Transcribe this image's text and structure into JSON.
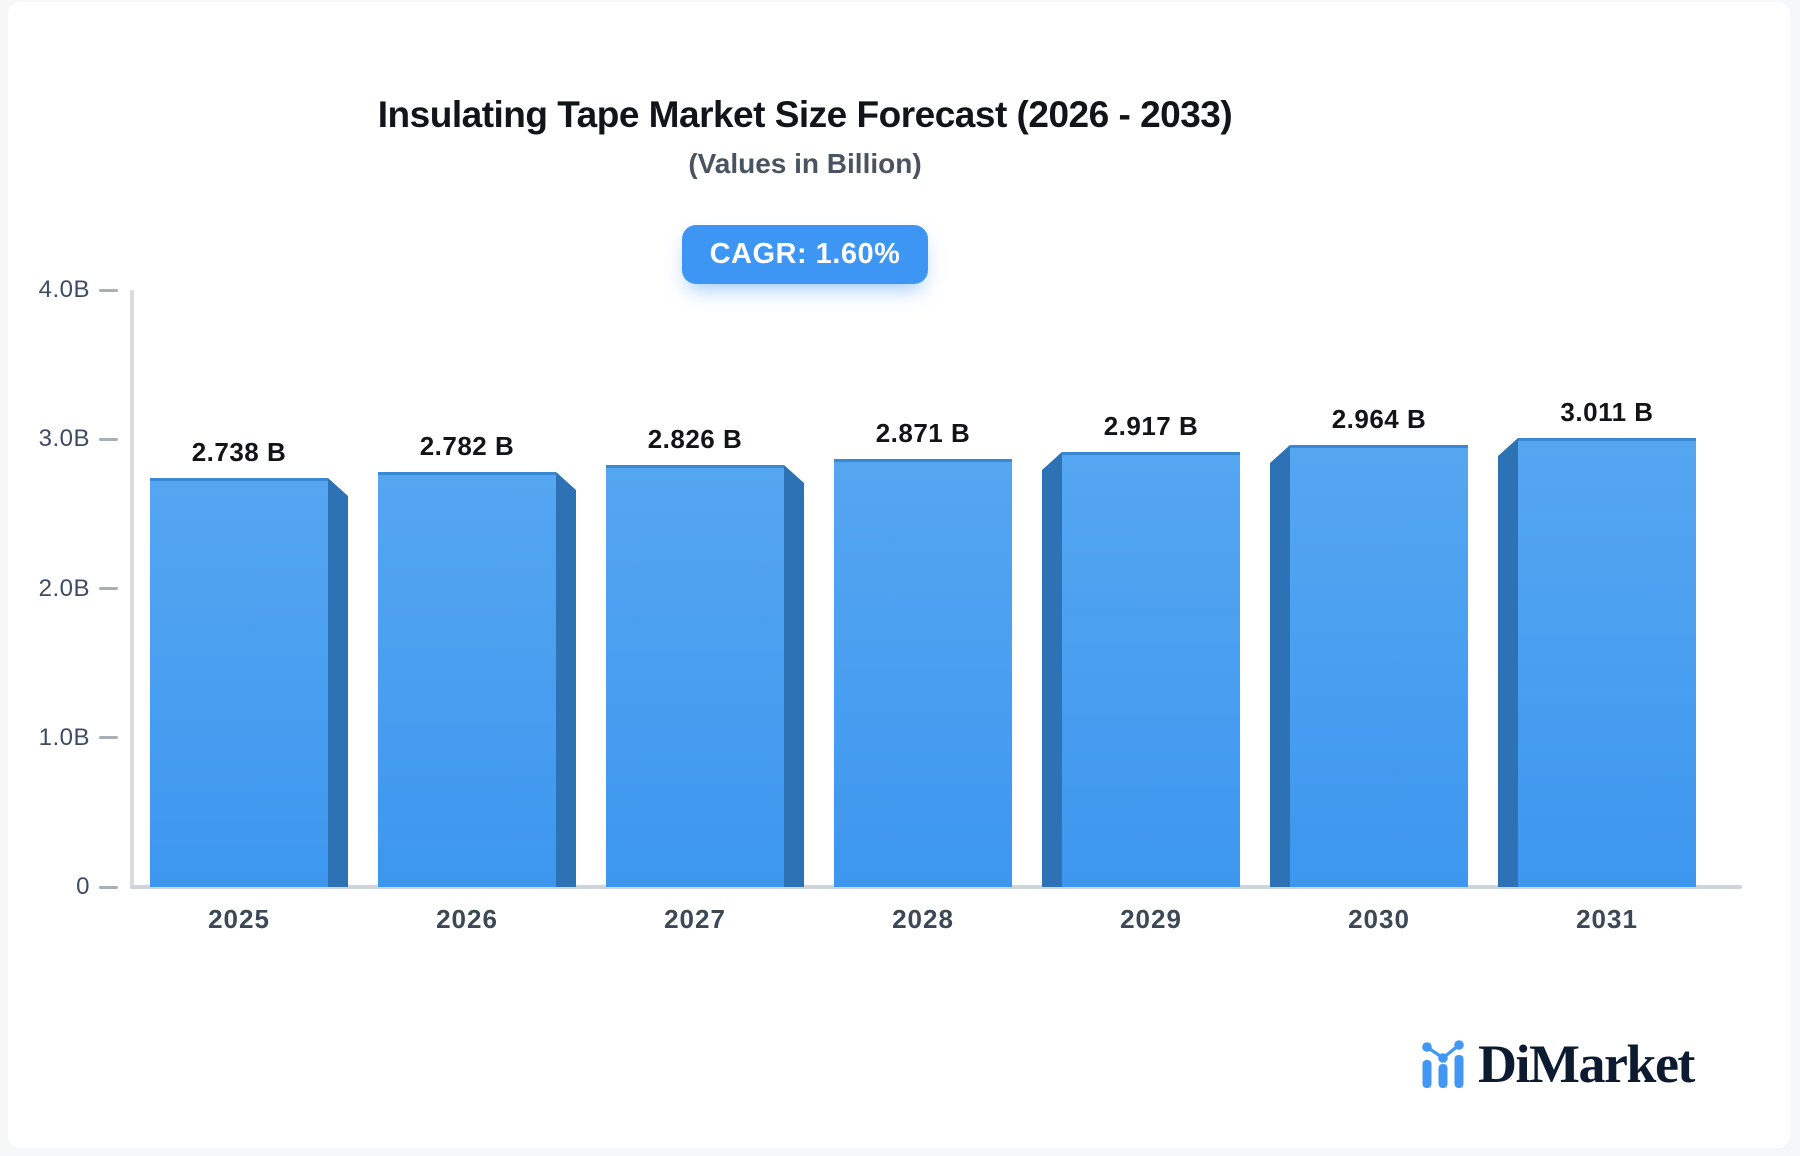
{
  "chart_data": {
    "type": "bar",
    "title": "Insulating Tape Market Size Forecast (2026 - 2033)",
    "subtitle": "(Values in Billion)",
    "annotations": [
      "CAGR: 1.60%"
    ],
    "categories": [
      "2025",
      "2026",
      "2027",
      "2028",
      "2029",
      "2030",
      "2031"
    ],
    "values": [
      2.738,
      2.782,
      2.826,
      2.871,
      2.917,
      2.964,
      3.011
    ],
    "value_labels": [
      "2.738 B",
      "2.782 B",
      "2.826 B",
      "2.871 B",
      "2.917 B",
      "2.964 B",
      "3.011 B"
    ],
    "xlabel": "",
    "ylabel": "",
    "ylim": [
      0,
      4
    ],
    "yticks": [
      {
        "value": 4,
        "label": "4.0B"
      },
      {
        "value": 3,
        "label": "3.0B"
      },
      {
        "value": 2,
        "label": "2.0B"
      },
      {
        "value": 1,
        "label": "1.0B"
      },
      {
        "value": 0,
        "label": "0"
      }
    ],
    "grid": false,
    "legend": null,
    "colors": {
      "bar_front_top": "#55A6F1",
      "bar_front_bottom": "#3D97EF",
      "bar_top_edge": "#3B88D2",
      "bar_side": "#2C72B4",
      "axis_line": "#D8DCDF",
      "baseline": "#CFD4DA",
      "tick": "#A9AFB9"
    }
  },
  "badge": {
    "bg": "#3E96F4",
    "text_color": "#FFFFFF"
  },
  "logo": {
    "text": "DiMarket",
    "color": "#0D1B31",
    "accent": "#4197F3",
    "icon": "bar-chart-sparkline-icon"
  }
}
